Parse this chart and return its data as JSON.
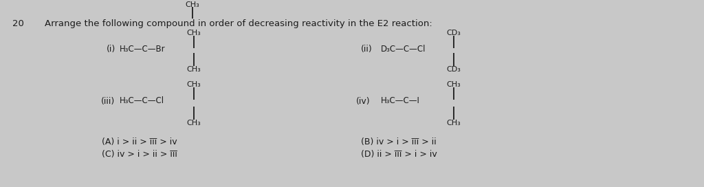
{
  "bg_color": "#c8c8c8",
  "text_color": "#1c1c1c",
  "question_number": "20",
  "question_text": "Arrange the following compound in order of decreasing reactivity in the E2 reaction:",
  "answer_A": "(A) i > ii > ιιι > iv",
  "answer_B": "(B) iv > i > ιιι > ii",
  "answer_C": "(C) iv > i > ii > ιιι",
  "answer_D": "(D) ii > ιιι > i > iv",
  "answer_A_plain": "(A) i > ii > iii > iv",
  "answer_B_plain": "(B) iv > i > iii > ii",
  "answer_C_plain": "(C) iv > i > ii > iii",
  "answer_D_plain": "(D) ii > iii > i > iv"
}
